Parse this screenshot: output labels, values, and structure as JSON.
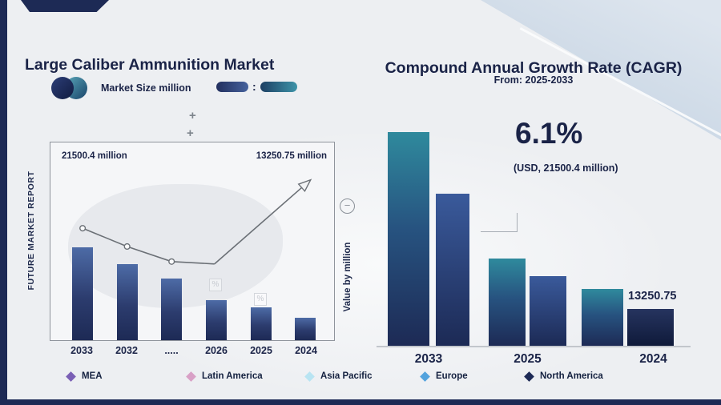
{
  "page": {
    "bg": "#edeff2",
    "navy": "#1d2a55",
    "teal": "#2f8399"
  },
  "chart_data": [
    {
      "type": "bar",
      "name": "market-size-trend",
      "title": "Large Caliber Ammunition Market",
      "legend_label": "Market Size million",
      "side_label": "FUTURE MARKET REPORT",
      "annotation_left": "21500.4 million",
      "annotation_right": "13250.75 million",
      "categories": [
        "2033",
        "2032",
        ".....",
        "2026",
        "2025",
        "2024"
      ],
      "known_values": {
        "2033": 21500.4,
        "2024": 13250.75
      },
      "heights_pct": [
        100,
        82,
        66,
        43,
        35,
        24
      ],
      "trend_note": "declining marker line ending in upward arrow"
    },
    {
      "type": "bar",
      "name": "cagr-chart",
      "title": "Compound Annual Growth Rate (CAGR)",
      "subtitle": "From: 2025-2033",
      "cagr": "6.1%",
      "cagr_note": "(USD, 21500.4 million)",
      "ylabel": "Value by million",
      "categories": [
        "2033",
        "2025",
        "2024"
      ],
      "known_values": {
        "2033": 21500.4,
        "2024": 13250.75
      },
      "series": [
        {
          "name": "series-1",
          "heights_pct": [
            98,
            40,
            26
          ]
        },
        {
          "name": "series-2",
          "heights_pct": [
            70,
            32,
            17
          ]
        }
      ],
      "annotation": "13250.75"
    }
  ],
  "regions_legend": [
    {
      "label": "MEA",
      "color": "#7a5fb5"
    },
    {
      "label": "Latin America",
      "color": "#d8a0c6"
    },
    {
      "label": "Asia Pacific",
      "color": "#b8e4f2"
    },
    {
      "label": "Europe",
      "color": "#53a3dd"
    },
    {
      "label": "North America",
      "color": "#1d2a55"
    }
  ],
  "decor": {
    "plus": "+",
    "minus": "−",
    "pills_separator": ":"
  }
}
